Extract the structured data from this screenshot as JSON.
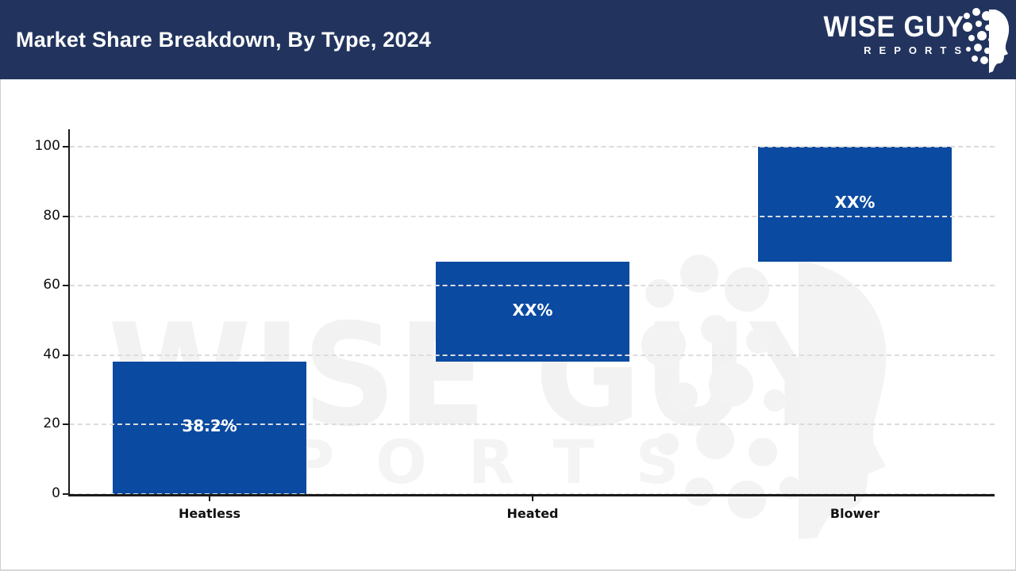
{
  "header": {
    "title": "Market Share Breakdown, By Type, 2024"
  },
  "logo": {
    "line1": "WISE GUY",
    "line2": "REPORTS"
  },
  "watermark": {
    "line1": "WISE GUY",
    "line2": "REPORTS"
  },
  "chart_data": {
    "type": "bar",
    "subtype": "floating-waterfall",
    "title": "Market Share Breakdown, By Type, 2024",
    "categories": [
      "Heatless",
      "Heated",
      "Blower"
    ],
    "bars": [
      {
        "category": "Heatless",
        "start": 0,
        "end": 38.2,
        "label": "38.2%"
      },
      {
        "category": "Heated",
        "start": 38.2,
        "end": 67,
        "label": "XX%"
      },
      {
        "category": "Blower",
        "start": 67,
        "end": 100,
        "label": "XX%"
      }
    ],
    "ylim": [
      0,
      100
    ],
    "yticks": [
      0,
      20,
      40,
      60,
      80,
      100
    ],
    "grid": "horizontal-dashed",
    "bar_color": "#0A4AA0",
    "bar_label_color": "#ffffff",
    "xlabel": "",
    "ylabel": ""
  },
  "colors": {
    "header_bg": "#22345E",
    "bar": "#0A4AA0",
    "grid": "#DCDCDC",
    "axis": "#1A1A1A",
    "watermark": "#F2F2F2"
  }
}
